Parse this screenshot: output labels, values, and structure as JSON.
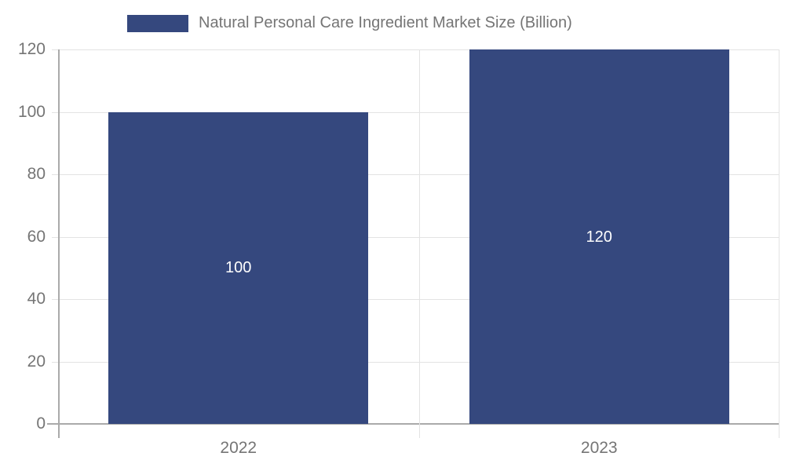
{
  "chart_data": {
    "type": "bar",
    "legend": [
      "Natural Personal Care Ingredient Market Size (Billion)"
    ],
    "legend_position": "top",
    "categories": [
      "2022",
      "2023"
    ],
    "values": [
      100,
      120
    ],
    "y_ticks": [
      0,
      20,
      40,
      60,
      80,
      100,
      120
    ],
    "ylim": [
      0,
      120
    ],
    "grid": true,
    "colors": {
      "bar": "#35487E",
      "gridline": "#E3E3E3",
      "axis": "#AAAAAA",
      "tick_label": "#757575",
      "value_label": "#FFFFFF",
      "background": "#FFFFFF"
    }
  }
}
